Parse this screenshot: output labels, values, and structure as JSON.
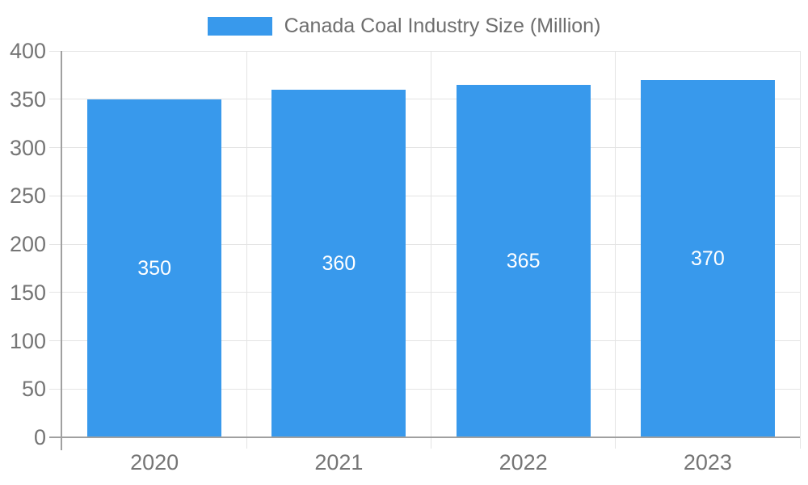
{
  "chart_data": {
    "type": "bar",
    "title": "Canada Coal Industry Size (Million)",
    "categories": [
      "2020",
      "2021",
      "2022",
      "2023"
    ],
    "values": [
      350,
      360,
      365,
      370
    ],
    "series": [
      {
        "name": "Canada Coal Industry Size (Million)",
        "values": [
          350,
          360,
          365,
          370
        ]
      }
    ],
    "bar_value_labels": [
      "350",
      "360",
      "365",
      "370"
    ],
    "xlabel": "",
    "ylabel": "",
    "ylim": [
      0,
      400
    ],
    "ytick_step": 50,
    "ytick_labels": [
      "0",
      "50",
      "100",
      "150",
      "200",
      "250",
      "300",
      "350",
      "400"
    ],
    "grid": true,
    "legend_position": "top-center",
    "colors": {
      "bar": "#3899EC",
      "bar_value_text": "#FFFFFF",
      "gridline": "#E4E4E4",
      "axis_line": "#A0A0A0",
      "tick_label_text": "#757575",
      "legend_text": "#6E6E6E",
      "background": "#FFFFFF"
    }
  }
}
